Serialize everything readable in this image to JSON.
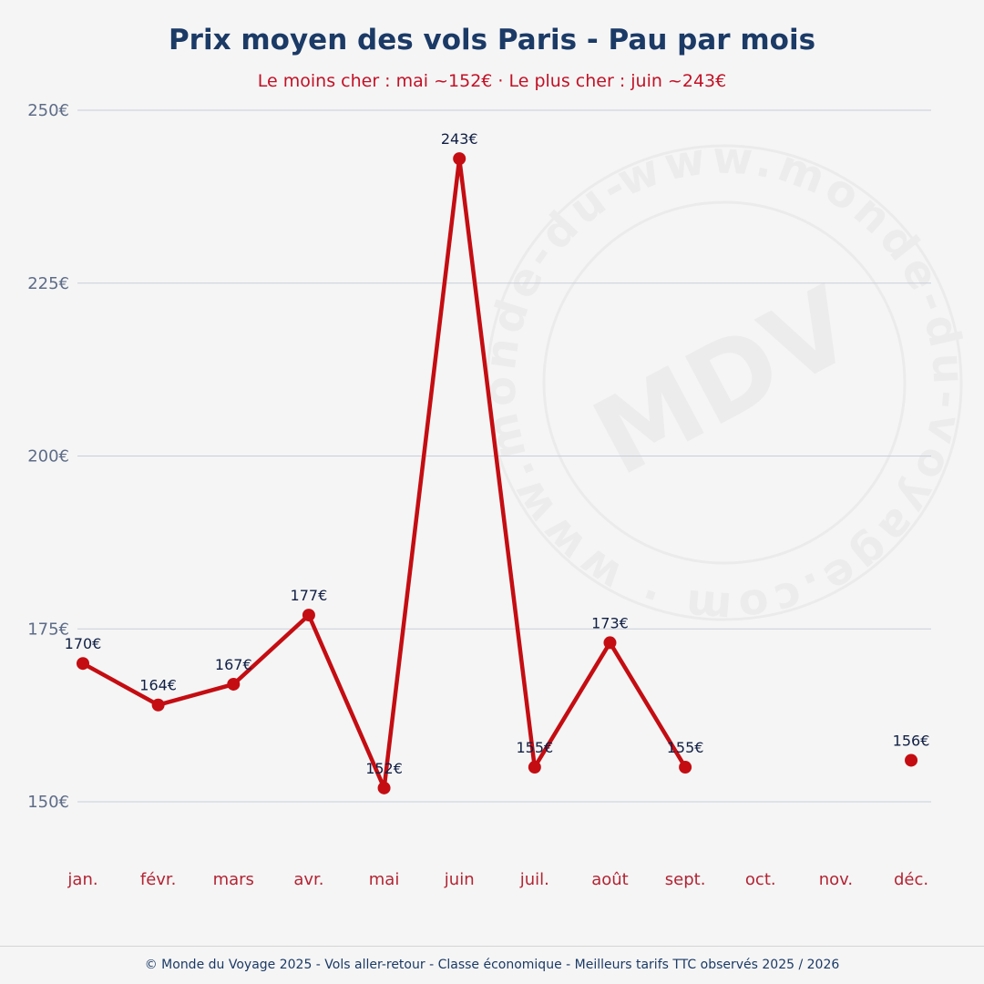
{
  "title": "Prix moyen des vols Paris - Pau par mois",
  "subtitle": "Le moins cher : mai ~152€ · Le plus cher : juin ~243€",
  "watermark": {
    "text": "www.monde-du-voyage.com",
    "initials": "MDV"
  },
  "footer": {
    "text": "© Monde du Voyage 2025 - Vols aller-retour - Classe économique - Meilleurs tarifs TTC observés 2025 / 2026"
  },
  "chart_data": {
    "type": "line",
    "title": "Prix moyen des vols Paris - Pau par mois",
    "subtitle": "Le moins cher : mai ~152€ · Le plus cher : juin ~243€",
    "categories": [
      "jan.",
      "févr.",
      "mars",
      "avr.",
      "mai",
      "juin",
      "juil.",
      "août",
      "sept.",
      "oct.",
      "nov.",
      "déc."
    ],
    "values": [
      170,
      164,
      167,
      177,
      152,
      243,
      155,
      173,
      155,
      null,
      null,
      156
    ],
    "unit": "€",
    "xlabel": "",
    "ylabel": "",
    "ylim": [
      150,
      250
    ],
    "yticks": [
      150,
      175,
      200,
      225,
      250
    ],
    "grid": true,
    "legend": false,
    "line_color": "#c40d12",
    "grid_color": "#c7cdda",
    "ytick_color": "#5e6c88",
    "xtick_color": "#b32433",
    "value_label_color": "#101f44",
    "min_point": {
      "month": "mai",
      "value": 152
    },
    "max_point": {
      "month": "juin",
      "value": 243
    }
  }
}
